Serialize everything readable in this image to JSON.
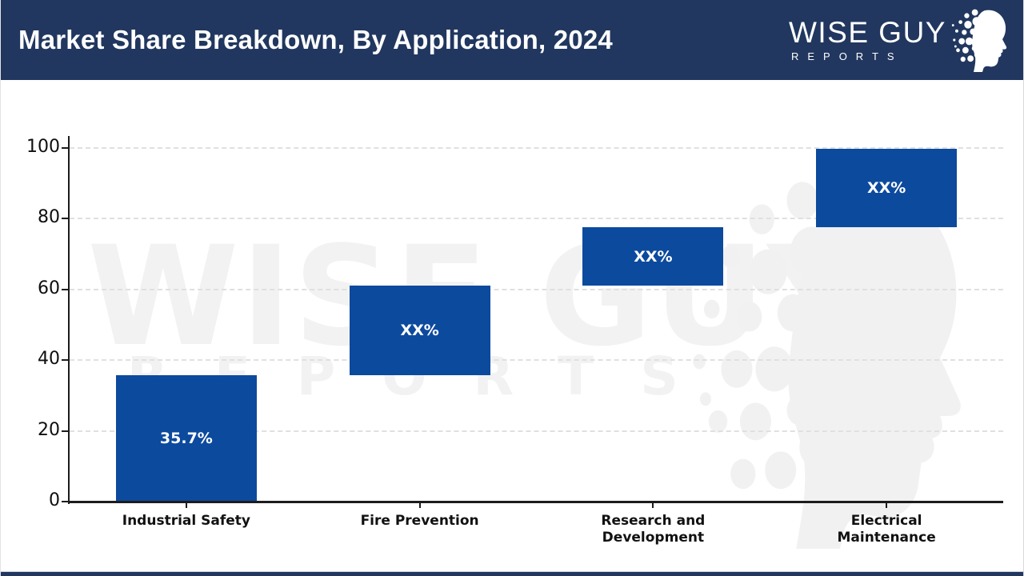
{
  "header": {
    "title": "Market Share Breakdown, By Application, 2024",
    "logo": {
      "line1": "WISE GUY",
      "line2": "REPORTS"
    }
  },
  "watermark": {
    "line1": "WISE GUY",
    "line2": "REPORTS"
  },
  "colors": {
    "header_bg": "#21375f",
    "bar_fill": "#0c4a9e",
    "gridline": "#e0e0e0",
    "axis": "#1c1c1c",
    "watermark": "#f2f2f2",
    "value_label": "#ffffff"
  },
  "chart_data": {
    "type": "bar",
    "subtype": "waterfall",
    "title": "Market Share Breakdown, By Application, 2024",
    "xlabel": "",
    "ylabel": "",
    "categories": [
      "Industrial Safety",
      "Fire Prevention",
      "Research and Development",
      "Electrical Maintenance"
    ],
    "bars": [
      {
        "category": "Industrial Safety",
        "category_lines": [
          "Industrial Safety"
        ],
        "start": 0,
        "end": 35.7,
        "label": "35.7%"
      },
      {
        "category": "Fire Prevention",
        "category_lines": [
          "Fire Prevention"
        ],
        "start": 35.7,
        "end": 61.0,
        "label": "XX%"
      },
      {
        "category": "Research and Development",
        "category_lines": [
          "Research and",
          "Development"
        ],
        "start": 61.0,
        "end": 77.5,
        "label": "XX%"
      },
      {
        "category": "Electrical Maintenance",
        "category_lines": [
          "Electrical",
          "Maintenance"
        ],
        "start": 77.5,
        "end": 99.8,
        "label": "XX%"
      }
    ],
    "y_ticks": [
      0,
      20,
      40,
      60,
      80,
      100
    ],
    "ylim": [
      0,
      103
    ],
    "grid": "dashed-horizontal",
    "legend": "none"
  }
}
